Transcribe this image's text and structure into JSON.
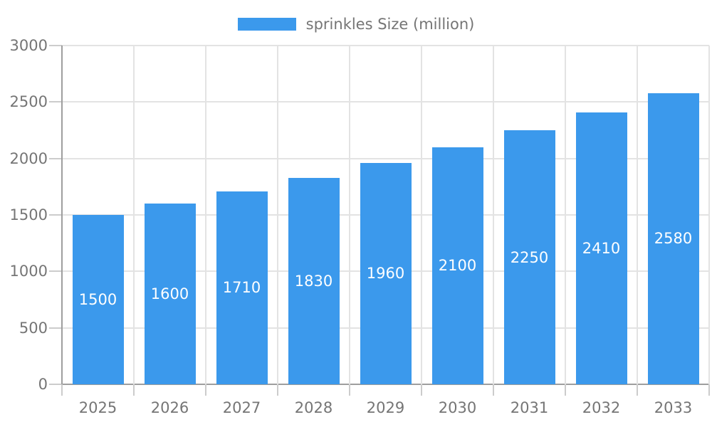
{
  "chart_data": {
    "type": "bar",
    "title": "",
    "legend_label": "sprinkles Size (million)",
    "legend_position": "top",
    "categories": [
      "2025",
      "2026",
      "2027",
      "2028",
      "2029",
      "2030",
      "2031",
      "2032",
      "2033"
    ],
    "values": [
      1500,
      1600,
      1710,
      1830,
      1960,
      2100,
      2250,
      2410,
      2580
    ],
    "series": [
      {
        "name": "sprinkles Size (million)",
        "values": [
          1500,
          1600,
          1710,
          1830,
          1960,
          2100,
          2250,
          2410,
          2580
        ]
      }
    ],
    "xlabel": "",
    "ylabel": "",
    "ylim": [
      0,
      3000
    ],
    "yticks": [
      0,
      500,
      1000,
      1500,
      2000,
      2500,
      3000
    ],
    "grid": true,
    "data_labels_inside_bars": true,
    "colors": {
      "bar": "#3B99EC",
      "data_label": "#FFFFFF",
      "axis_text": "#757575",
      "grid_line": "#E3E3E3",
      "axis_line": "#9E9E9E",
      "tick": "#CCCCCC",
      "background": "#FFFFFF"
    }
  }
}
